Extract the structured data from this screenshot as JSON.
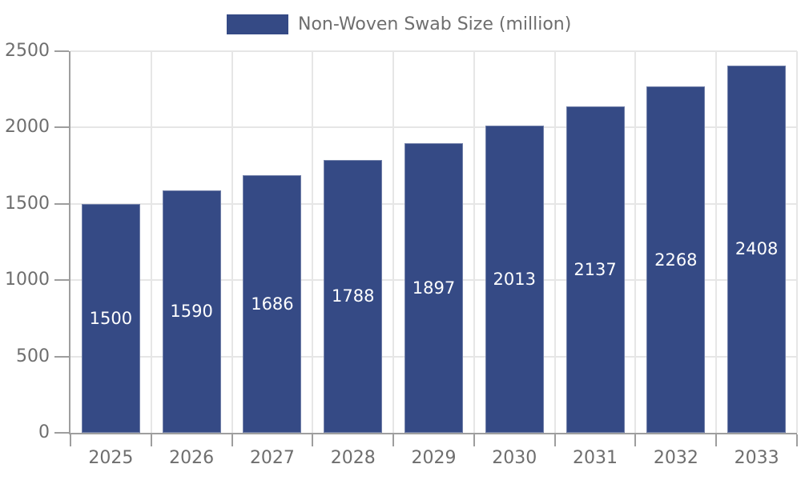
{
  "legend": {
    "label": "Non-Woven Swab Size (million)",
    "swatch_color": "#354a85"
  },
  "chart_data": {
    "type": "bar",
    "title": "Non-Woven Swab Size (million)",
    "categories": [
      "2025",
      "2026",
      "2027",
      "2028",
      "2029",
      "2030",
      "2031",
      "2032",
      "2033"
    ],
    "series": [
      {
        "name": "Non-Woven Swab Size (million)",
        "color": "#354a85",
        "values": [
          1500,
          1590,
          1686,
          1788,
          1897,
          2013,
          2137,
          2268,
          2408
        ]
      }
    ],
    "xlabel": "",
    "ylabel": "",
    "ylim": [
      0,
      2500
    ],
    "yticks": [
      0,
      500,
      1000,
      1500,
      2000,
      2500
    ],
    "grid": "on",
    "legend_position": "top-center",
    "bar_value_labels": "inside-center",
    "colors": {
      "bar": "#354a85",
      "bar_label": "#ffffff",
      "axis_text": "#6e6e6e",
      "grid_line": "#e6e6e6",
      "axis_line": "#9e9e9e",
      "background": "#ffffff"
    }
  }
}
